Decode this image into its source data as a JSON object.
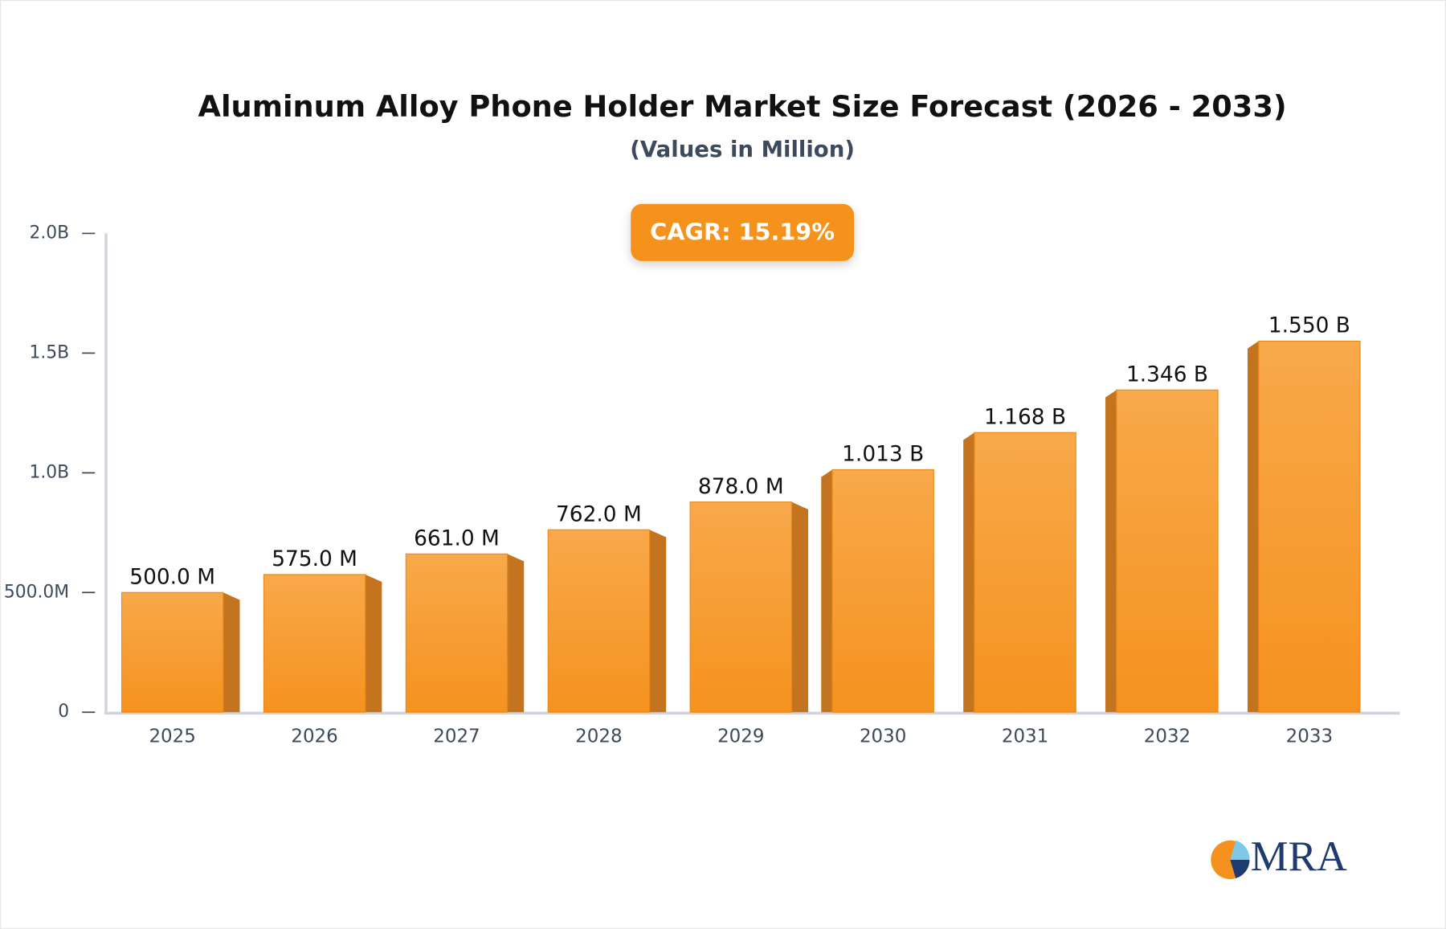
{
  "chart_data": {
    "type": "bar3d",
    "title": "Aluminum Alloy Phone Holder Market Size Forecast (2026 - 2033)",
    "subtitle": "(Values in Million)",
    "annotation": "CAGR: 15.19%",
    "logo": "MRA",
    "categories": [
      "2025",
      "2026",
      "2027",
      "2028",
      "2029",
      "2030",
      "2031",
      "2032",
      "2033"
    ],
    "values": [
      500,
      575,
      661,
      762,
      878,
      1013,
      1168,
      1346,
      1550
    ],
    "value_labels": [
      "500.0 M",
      "575.0 M",
      "661.0 M",
      "762.0 M",
      "878.0 M",
      "1.013 B",
      "1.168 B",
      "1.346 B",
      "1.550 B"
    ],
    "color": "#f5961f",
    "ylim": [
      0,
      2000
    ],
    "yticks": [
      0,
      {
        "value": 500,
        "label": "500.0M"
      },
      {
        "value": 1000,
        "label": "1.0B"
      },
      {
        "value": 1500,
        "label": "1.5B"
      },
      {
        "value": 2000,
        "label": "2.0B"
      }
    ],
    "grid": false
  }
}
